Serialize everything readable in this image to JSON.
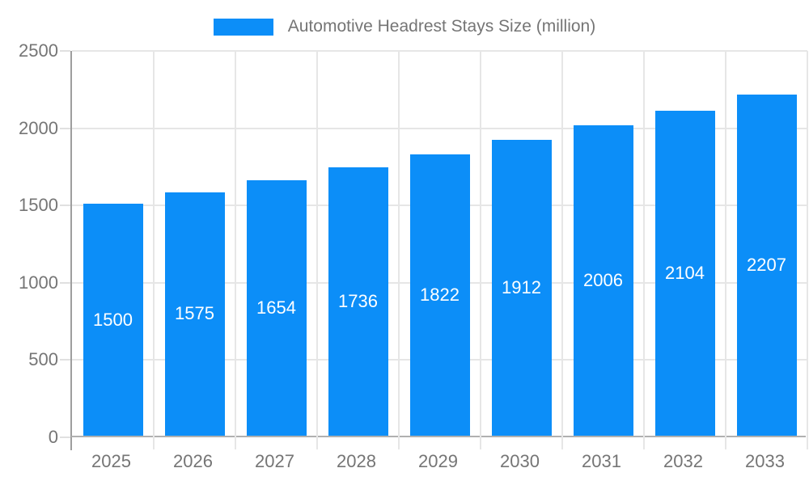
{
  "legend": {
    "label": "Automotive Headrest Stays Size (million)"
  },
  "chart_data": {
    "type": "bar",
    "title": "Automotive Headrest Stays Size (million)",
    "categories": [
      "2025",
      "2026",
      "2027",
      "2028",
      "2029",
      "2030",
      "2031",
      "2032",
      "2033"
    ],
    "values": [
      1500,
      1575,
      1654,
      1736,
      1822,
      1912,
      2006,
      2104,
      2207
    ],
    "xlabel": "",
    "ylabel": "",
    "ylim": [
      0,
      2500
    ],
    "yticks": [
      0,
      500,
      1000,
      1500,
      2000,
      2500
    ],
    "grid": true,
    "legend_position": "top-center",
    "colors": {
      "bar": "#0C8EF8",
      "bar_value_label": "#ffffff",
      "axis_text": "#757575",
      "gridline": "#e6e6e6",
      "y_axis_line": "#9e9e9e",
      "x_axis_line": "#b0b0b0",
      "background": "#ffffff"
    }
  }
}
